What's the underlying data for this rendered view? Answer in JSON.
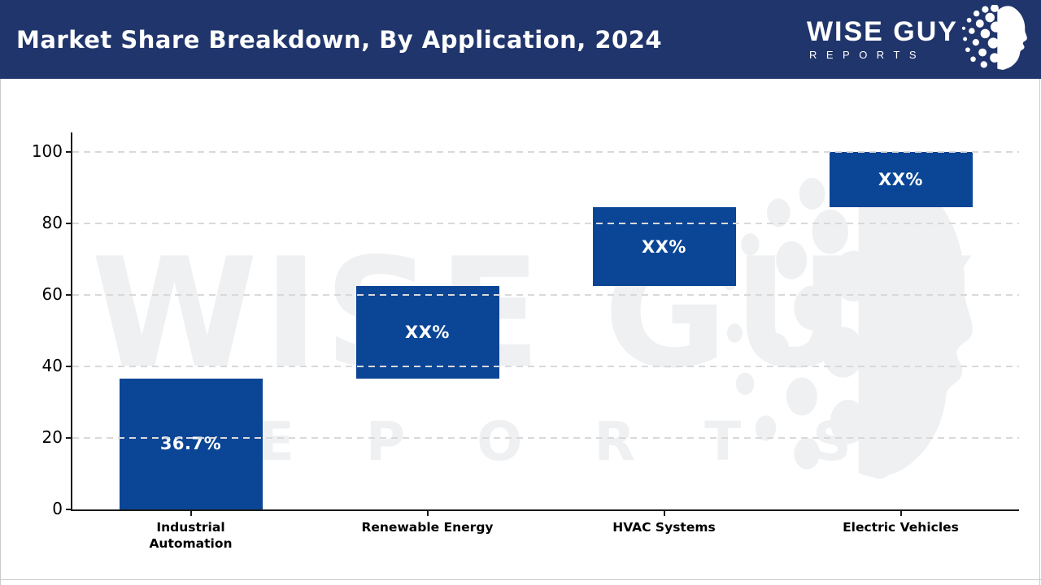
{
  "header": {
    "title": "Market Share Breakdown, By Application, 2024",
    "logo": {
      "line1": "WISE GUY",
      "line2": "REPORTS",
      "icon": "face-dots-icon"
    }
  },
  "watermark": {
    "line1": "WISE GUY",
    "line2": "REPORTS"
  },
  "colors": {
    "header_bg": "#20356b",
    "bar": "#0a4596",
    "bar_label": "#ffffff",
    "grid": "#d9d9d9",
    "axis": "#1a1a1a",
    "watermark": "#eff0f2"
  },
  "chart_data": {
    "type": "bar",
    "subtype": "waterfall-floating",
    "title": "Market Share Breakdown, By Application, 2024",
    "categories": [
      "Industrial Automation",
      "Renewable Energy",
      "HVAC Systems",
      "Electric Vehicles"
    ],
    "bars": [
      {
        "category": "Industrial Automation",
        "start": 0,
        "end": 36.7,
        "label": "36.7%"
      },
      {
        "category": "Renewable Energy",
        "start": 36.7,
        "end": 62.5,
        "label": "XX%"
      },
      {
        "category": "HVAC Systems",
        "start": 62.5,
        "end": 84.5,
        "label": "XX%"
      },
      {
        "category": "Electric Vehicles",
        "start": 84.5,
        "end": 100,
        "label": "XX%"
      }
    ],
    "yticks": [
      0,
      20,
      40,
      60,
      80,
      100
    ],
    "ylim": [
      0,
      105.5
    ],
    "xlabel": "",
    "ylabel": "",
    "grid": "horizontal-dashed",
    "grid_above_bars": true,
    "legend": "none",
    "bar_color": "#0a4596",
    "bar_label_color": "#ffffff"
  }
}
